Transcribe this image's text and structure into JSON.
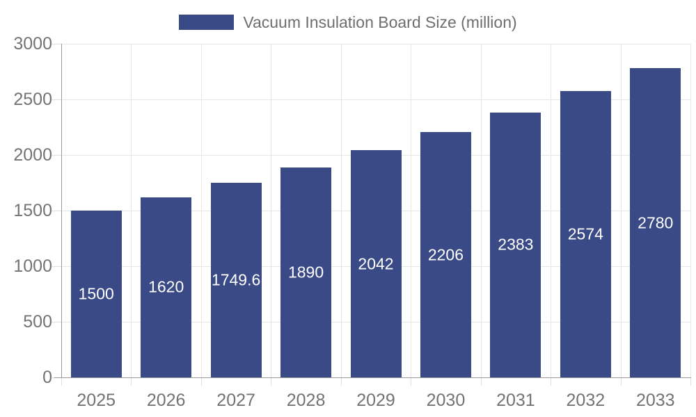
{
  "legend": {
    "swatch_color": "#3A4A87"
  },
  "chart_data": {
    "type": "bar",
    "title": "Vacuum Insulation Board Size (million)",
    "categories": [
      "2025",
      "2026",
      "2027",
      "2028",
      "2029",
      "2030",
      "2031",
      "2032",
      "2033"
    ],
    "values": [
      1500,
      1620,
      1749.6,
      1890,
      2042,
      2206,
      2383,
      2574,
      2780
    ],
    "bar_labels": [
      "1500",
      "1620",
      "1749.6",
      "1890",
      "2042",
      "2206",
      "2383",
      "2574",
      "2780"
    ],
    "xlabel": "",
    "ylabel": "",
    "ylim": [
      0,
      3000
    ],
    "y_ticks": [
      0,
      500,
      1000,
      1500,
      2000,
      2500,
      3000
    ],
    "grid": true,
    "legend_position": "top-center",
    "colors": {
      "bar": "#3A4A87",
      "axis": "#999999",
      "grid": "#E6E6E6",
      "tick_label": "#737373",
      "value_label": "#FFFFFF",
      "title_text": "#6E6E6E",
      "background": "#FFFFFF"
    }
  }
}
